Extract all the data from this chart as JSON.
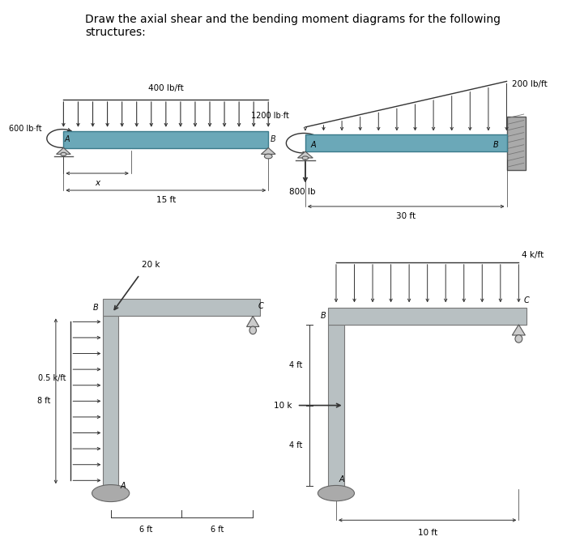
{
  "title": "Draw the axial shear and the bending moment diagrams for the following\nstructures:",
  "title_fontsize": 10,
  "bg_color": "#ffffff",
  "beam_color": "#6ba8b8",
  "frame_color": "#b8c0c2",
  "arrow_color": "#333333",
  "struct1": {
    "label_moment": "600 lb·ft",
    "label_dist": "400 lb/ft",
    "label_length": "15 ft",
    "label_x": "x",
    "n_arrows": 15
  },
  "struct2": {
    "label_moment": "1200 lb·ft",
    "label_dist_right": "200 lb/ft",
    "label_length": "30 ft",
    "label_force": "800 lb",
    "n_arrows": 12
  },
  "struct3": {
    "label_dist": "0.5 k/ft",
    "label_point": "20 k",
    "label_height": "8 ft",
    "label_w1": "6 ft",
    "label_w2": "6 ft",
    "n_arrows_vert": 11
  },
  "struct4": {
    "label_dist": "4 k/ft",
    "label_force": "10 k",
    "label_h1": "4 ft",
    "label_h2": "4 ft",
    "label_width": "10 ft",
    "n_arrows": 11
  }
}
